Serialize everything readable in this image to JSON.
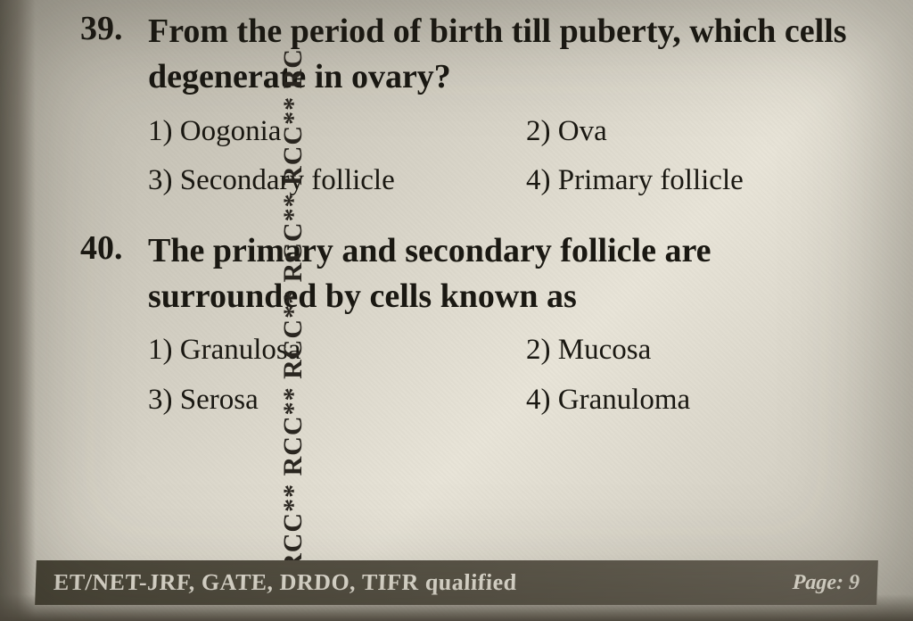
{
  "page": {
    "background_colors": [
      "#b8b4a8",
      "#d8d4c8",
      "#e8e4d8",
      "#c8c4b8"
    ],
    "text_color": "#1a1812",
    "font_family": "Georgia serif"
  },
  "vertical_label": "RCC** RCC** RCC** RCC** RCC** RC",
  "questions": [
    {
      "number": "39.",
      "text": "From the period of birth till puberty, which cells degenerate in ovary?",
      "options": [
        {
          "num": "1)",
          "text": "Oogonia"
        },
        {
          "num": "2)",
          "text": "Ova"
        },
        {
          "num": "3)",
          "text": "Secondary follicle"
        },
        {
          "num": "4)",
          "text": "Primary follicle"
        }
      ]
    },
    {
      "number": "40.",
      "text": "The primary and secondary follicle are surrounded by cells known as",
      "options": [
        {
          "num": "1)",
          "text": "Granulosa"
        },
        {
          "num": "2)",
          "text": "Mucosa"
        },
        {
          "num": "3)",
          "text": "Serosa"
        },
        {
          "num": "4)",
          "text": "Granuloma"
        }
      ]
    }
  ],
  "footer": {
    "left": "ET/NET-JRF, GATE, DRDO, TIFR qualified",
    "right": "Page: 9",
    "bg_color": "#4a4638",
    "text_color": "#e8e4d8"
  },
  "typography": {
    "question_number_fontsize": 38,
    "question_text_fontsize": 38,
    "option_fontsize": 33,
    "vertical_fontsize": 30,
    "footer_fontsize": 26
  }
}
